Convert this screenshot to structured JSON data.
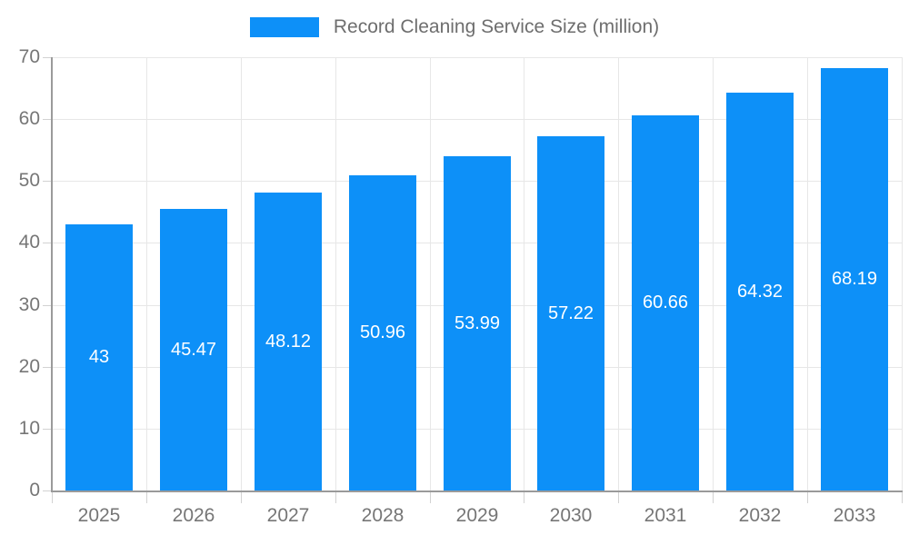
{
  "legend": {
    "label": "Record Cleaning Service Size (million)"
  },
  "chart_data": {
    "type": "bar",
    "title": "Record Cleaning Service Size (million)",
    "categories": [
      "2025",
      "2026",
      "2027",
      "2028",
      "2029",
      "2030",
      "2031",
      "2032",
      "2033"
    ],
    "series": [
      {
        "name": "Record Cleaning Service Size (million)",
        "values": [
          43,
          45.47,
          48.12,
          50.96,
          53.99,
          57.22,
          60.66,
          64.32,
          68.19
        ]
      }
    ],
    "data_labels": [
      "43",
      "45.47",
      "48.12",
      "50.96",
      "53.99",
      "57.22",
      "60.66",
      "64.32",
      "68.19"
    ],
    "xlabel": "",
    "ylabel": "",
    "ylim": [
      0,
      70
    ],
    "yticks": [
      0,
      10,
      20,
      30,
      40,
      50,
      60,
      70
    ],
    "grid": true,
    "legend_position": "top-center",
    "data_label_position": "center-of-bar",
    "colors": {
      "bar": "#0d90f8",
      "axis": "#9a9a9a",
      "grid": "#e7e7e7",
      "tick": "#d2d2d2",
      "axis_text": "#767676",
      "legend_text": "#6e6e6e",
      "data_label_text": "#ffffff",
      "background": "#ffffff"
    }
  }
}
